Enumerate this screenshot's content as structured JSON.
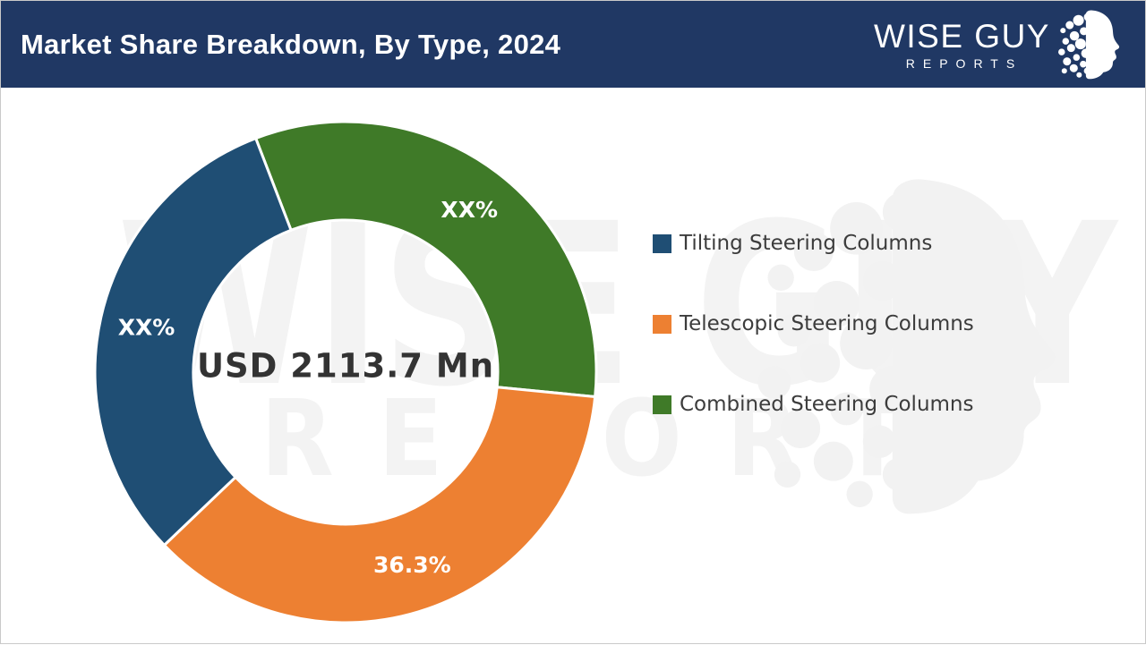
{
  "header": {
    "title": "Market Share Breakdown, By Type, 2024",
    "logo_line1": "WISE GUY",
    "logo_line2": "REPORTS",
    "bg_color": "#203864"
  },
  "watermark": {
    "line1": "WISE GUY",
    "line2": "REPORTS"
  },
  "chart_data": {
    "type": "pie",
    "subtype": "donut",
    "title": "Market Share Breakdown, By Type, 2024",
    "center_label": "USD 2113.7 Mn",
    "start_angle_deg": -21,
    "rotation": "clockwise",
    "legend_position": "right",
    "segments": [
      {
        "name": "Combined Steering Columns",
        "display_label": "XX%",
        "value_pct": 32.4,
        "color": "#3f7a28"
      },
      {
        "name": "Telescopic Steering Columns",
        "display_label": "36.3%",
        "value_pct": 36.3,
        "color": "#ed8032"
      },
      {
        "name": "Tilting Steering Columns",
        "display_label": "XX%",
        "value_pct": 31.3,
        "color": "#1f4e74"
      }
    ],
    "legend": [
      {
        "label": "Tilting Steering Columns",
        "color": "#1f4e74"
      },
      {
        "label": "Telescopic Steering Columns",
        "color": "#ed8032"
      },
      {
        "label": "Combined Steering Columns",
        "color": "#3f7a28"
      }
    ]
  }
}
